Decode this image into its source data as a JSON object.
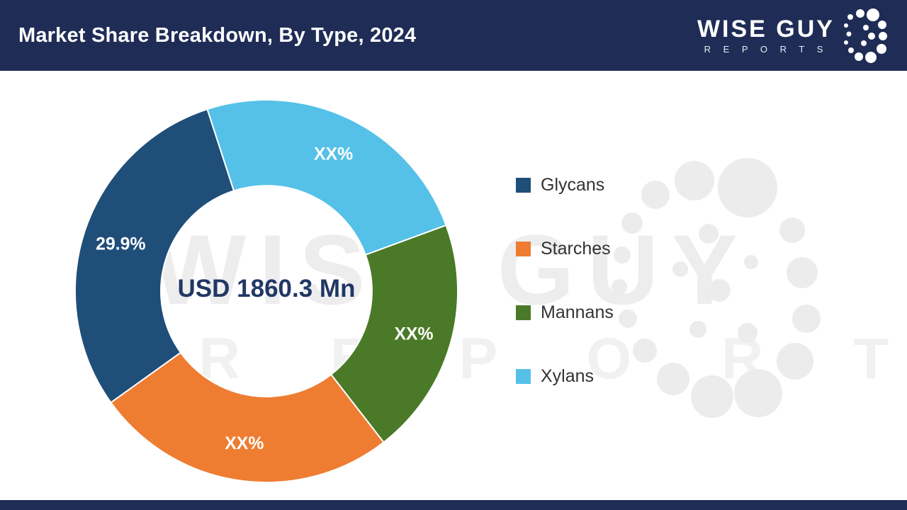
{
  "header": {
    "title": "Market Share Breakdown, By Type, 2024",
    "bg_color": "#1f2c56",
    "logo": {
      "line1": "WISE GUY",
      "line2": "R E P O R T S"
    }
  },
  "watermark": {
    "line1": "WISE GUY",
    "line2": "R E P O R T S"
  },
  "footer": {
    "bar_color": "#1f2c56"
  },
  "chart_data": {
    "type": "pie",
    "subtype": "donut",
    "title": "Market Share Breakdown, By Type, 2024",
    "center_label": "USD 1860.3 Mn",
    "units": "percent share",
    "start_angle_deg": 252,
    "direction": "counterclockwise",
    "legend_position": "right",
    "segments": [
      {
        "label": "Glycans",
        "value": 29.9,
        "display": "29.9%",
        "color": "#1f4e79"
      },
      {
        "label": "Starches",
        "value": 25.6,
        "display": "XX%",
        "color": "#ee7d31"
      },
      {
        "label": "Mannans",
        "value": 20.1,
        "display": "XX%",
        "color": "#4a7a28"
      },
      {
        "label": "Xylans",
        "value": 24.4,
        "display": "XX%",
        "color": "#55c1e8"
      }
    ]
  }
}
